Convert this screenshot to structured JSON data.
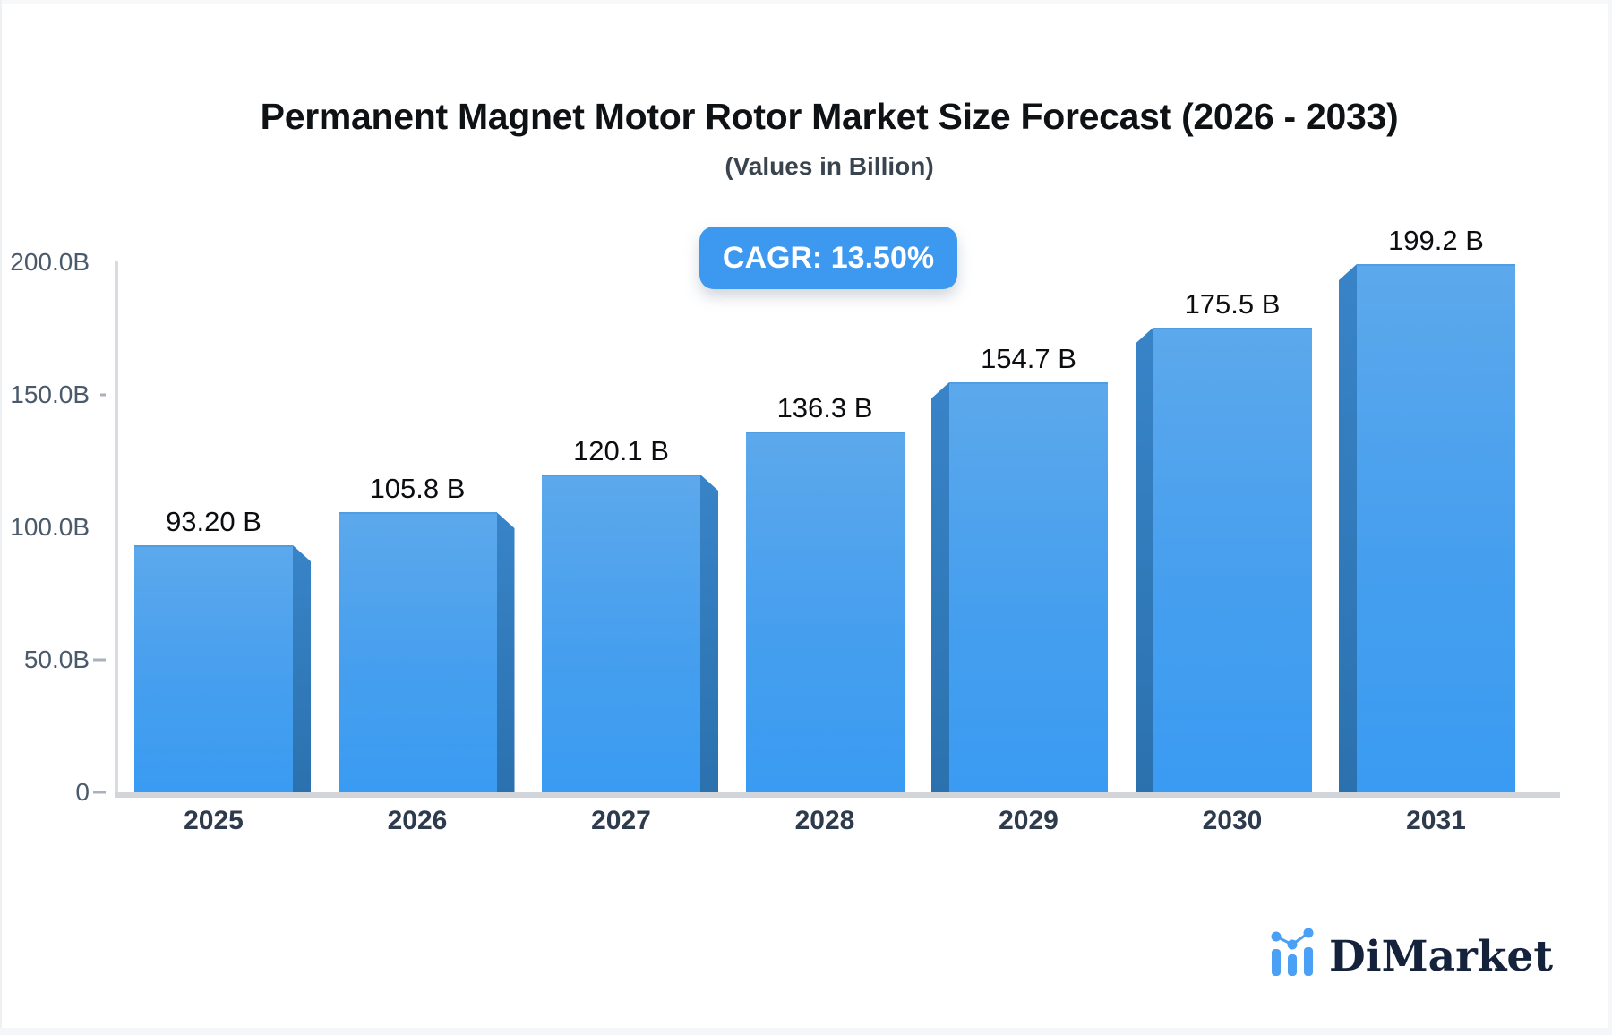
{
  "chart_data": {
    "type": "bar",
    "title": "Permanent Magnet Motor Rotor Market Size Forecast (2026 - 2033)",
    "subtitle": "(Values in Billion)",
    "badge_label": "CAGR: 13.50%",
    "categories": [
      "2025",
      "2026",
      "2027",
      "2028",
      "2029",
      "2030",
      "2031"
    ],
    "values": [
      93.2,
      105.8,
      120.1,
      136.3,
      154.7,
      175.5,
      199.2
    ],
    "value_labels": [
      "93.20 B",
      "105.8 B",
      "120.1 B",
      "136.3 B",
      "154.7 B",
      "175.5 B",
      "199.2 B"
    ],
    "xlabel": "",
    "ylabel": "",
    "ylim": [
      0,
      200
    ],
    "grid": false,
    "legend_position": "none",
    "y_axis": {
      "tick_labels": [
        "200.0B",
        "150.0B",
        "100.0B",
        "50.0B",
        "0"
      ],
      "tick_values": [
        200,
        150,
        100,
        50,
        0
      ]
    },
    "colors": {
      "bar_face_top": "#5ca8ec",
      "bar_face_bottom": "#3a9bf2",
      "bar_side": "#2d78bb",
      "badge_background": "#3d98ef",
      "badge_text": "#ffffff",
      "axis_line": "#d2d6da",
      "value_label_text": "#0b0d10",
      "axis_label_text": "#4b5a6b"
    }
  },
  "logo": {
    "text": "DiMarket",
    "icon": "bar-chart-trend-icon",
    "icon_color": "#4aa0f4",
    "text_color": "#15223b"
  }
}
